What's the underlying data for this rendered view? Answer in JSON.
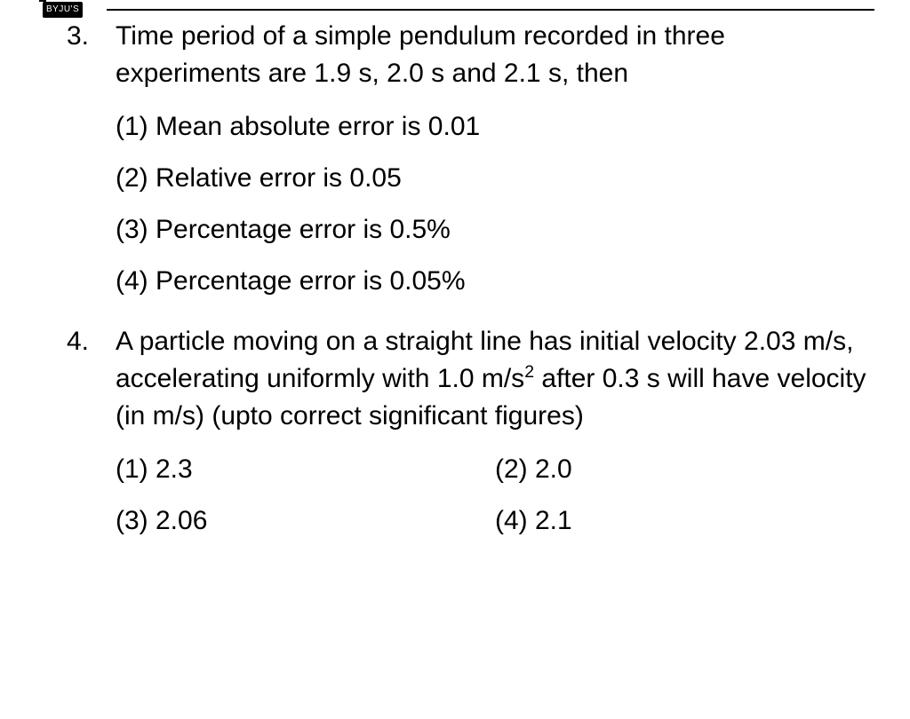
{
  "badge": "BYJU'S",
  "q3": {
    "number": "3.",
    "text": "Time period of a simple pendulum recorded in three experiments are 1.9 s, 2.0 s and 2.1 s, then",
    "options": [
      "(1) Mean absolute error is 0.01",
      "(2) Relative error is 0.05",
      "(3) Percentage error is 0.5%",
      "(4) Percentage error is 0.05%"
    ]
  },
  "q4": {
    "number": "4.",
    "text_before": "A particle moving on a straight line has initial velocity 2.03 m/s, accelerating uniformly with 1.0 m/s",
    "text_after": " after 0.3 s will have velocity (in m/s) (upto correct significant figures)",
    "options": [
      "(1) 2.3",
      "(2) 2.0",
      "(3) 2.06",
      "(4) 2.1"
    ]
  }
}
